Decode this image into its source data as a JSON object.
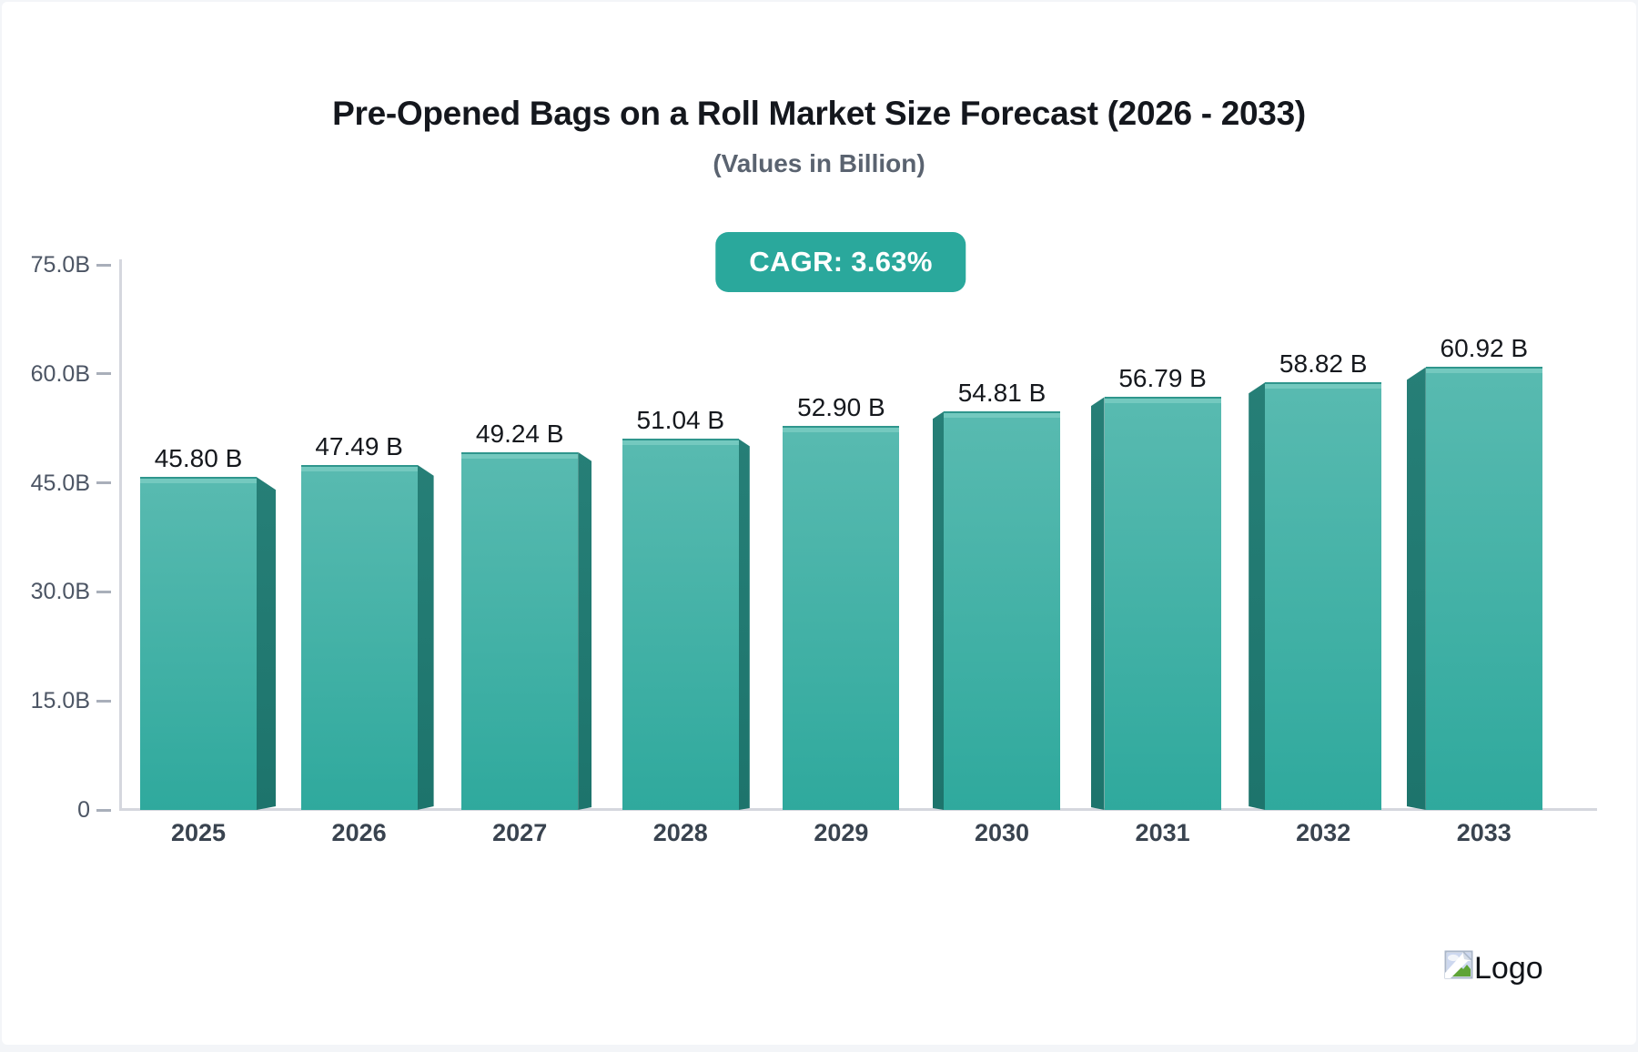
{
  "header": {
    "title": "Pre-Opened Bags on a Roll Market Size Forecast (2026 - 2033)",
    "subtitle": "(Values in Billion)",
    "cagr_label": "CAGR: 3.63%"
  },
  "chart_data": {
    "type": "bar",
    "title": "Pre-Opened Bags on a Roll Market Size Forecast (2026 - 2033)",
    "subtitle": "(Values in Billion)",
    "cagr": "3.63%",
    "categories": [
      "2025",
      "2026",
      "2027",
      "2028",
      "2029",
      "2030",
      "2031",
      "2032",
      "2033"
    ],
    "values": [
      45.8,
      47.49,
      49.24,
      51.04,
      52.9,
      54.81,
      56.79,
      58.82,
      60.92
    ],
    "value_labels": [
      "45.80 B",
      "47.49 B",
      "49.24 B",
      "51.04 B",
      "52.90 B",
      "54.81 B",
      "56.79 B",
      "58.82 B",
      "60.92 B"
    ],
    "xlabel": "",
    "ylabel": "",
    "ylim": [
      0,
      75
    ],
    "grid": false,
    "legend": false,
    "yticks": [
      {
        "value": 0,
        "label": "0"
      },
      {
        "value": 15,
        "label": "15.0B"
      },
      {
        "value": 30,
        "label": "30.0B"
      },
      {
        "value": 45,
        "label": "45.0B"
      },
      {
        "value": 60,
        "label": "60.0B"
      },
      {
        "value": 75,
        "label": "75.0B"
      }
    ],
    "colors": {
      "bar_top_edge": "#2f968d",
      "bar_top_highlight": "#74c9bf",
      "bar_front_top": "#58bab0",
      "bar_front_bottom": "#2fa99d",
      "bar_side_top": "#267f77",
      "bar_side_bottom": "#1d746c",
      "axis": "#d5d7de",
      "badge": "#2aa89c"
    }
  },
  "footer": {
    "logo_alt": "Logo"
  }
}
